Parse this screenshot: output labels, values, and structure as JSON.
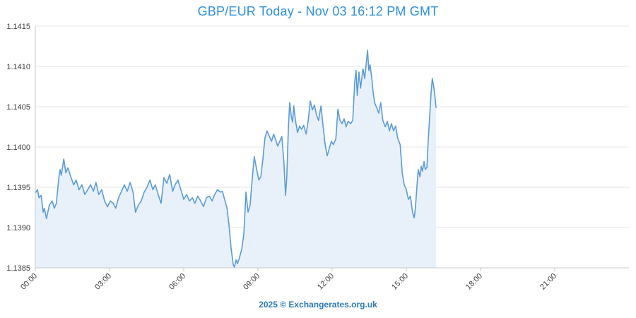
{
  "title": "GBP/EUR Today - Nov 03 16:12 PM GMT",
  "footer": "2025 © Exchangerates.org.uk",
  "colors": {
    "title": "#2e90dd",
    "footer": "#2a7ab9",
    "line": "#5b9bd8",
    "fill": "#e8f1fa",
    "grid": "#e6e6e6",
    "axis": "#c9c9c9",
    "tick": "#c9c9c9",
    "label": "#3c3c3c"
  },
  "chart_data": {
    "type": "area",
    "title": "GBP/EUR Today - Nov 03 16:12 PM GMT",
    "series_name": "GBP/EUR",
    "xlabel": "",
    "ylabel": "",
    "grid": true,
    "legend": false,
    "ylim": [
      1.1385,
      1.1415
    ],
    "y_ticks": [
      1.1415,
      1.141,
      1.1405,
      1.14,
      1.1395,
      1.139,
      1.1385
    ],
    "y_tick_decimals": 4,
    "xlim_minutes": [
      0,
      1440
    ],
    "x_tick_minutes": [
      0,
      180,
      360,
      540,
      720,
      900,
      1080,
      1260
    ],
    "x_tick_labels": [
      "00:00",
      "03:00",
      "06:00",
      "09:00",
      "12:00",
      "15:00",
      "18:00",
      "21:00"
    ],
    "last_point_minute": 972,
    "points": [
      [
        0,
        1.13943
      ],
      [
        5,
        1.13947
      ],
      [
        9,
        1.13937
      ],
      [
        14,
        1.1394
      ],
      [
        19,
        1.13919
      ],
      [
        22,
        1.13924
      ],
      [
        27,
        1.13911
      ],
      [
        34,
        1.13928
      ],
      [
        41,
        1.13933
      ],
      [
        46,
        1.13924
      ],
      [
        51,
        1.1393
      ],
      [
        57,
        1.13962
      ],
      [
        60,
        1.13972
      ],
      [
        63,
        1.13965
      ],
      [
        69,
        1.13985
      ],
      [
        74,
        1.13968
      ],
      [
        79,
        1.13974
      ],
      [
        86,
        1.13963
      ],
      [
        93,
        1.13953
      ],
      [
        99,
        1.13959
      ],
      [
        106,
        1.13947
      ],
      [
        113,
        1.13953
      ],
      [
        120,
        1.13941
      ],
      [
        127,
        1.13947
      ],
      [
        134,
        1.13953
      ],
      [
        141,
        1.13945
      ],
      [
        147,
        1.13956
      ],
      [
        154,
        1.13941
      ],
      [
        161,
        1.13947
      ],
      [
        168,
        1.13933
      ],
      [
        175,
        1.13926
      ],
      [
        182,
        1.13933
      ],
      [
        189,
        1.1393
      ],
      [
        195,
        1.13924
      ],
      [
        202,
        1.13937
      ],
      [
        209,
        1.13945
      ],
      [
        216,
        1.13953
      ],
      [
        223,
        1.13945
      ],
      [
        230,
        1.13956
      ],
      [
        237,
        1.13944
      ],
      [
        243,
        1.13919
      ],
      [
        250,
        1.13928
      ],
      [
        257,
        1.13933
      ],
      [
        264,
        1.13944
      ],
      [
        271,
        1.1395
      ],
      [
        278,
        1.13959
      ],
      [
        285,
        1.13947
      ],
      [
        291,
        1.13953
      ],
      [
        298,
        1.13941
      ],
      [
        305,
        1.1393
      ],
      [
        312,
        1.13962
      ],
      [
        319,
        1.13955
      ],
      [
        326,
        1.13966
      ],
      [
        333,
        1.13945
      ],
      [
        339,
        1.13953
      ],
      [
        346,
        1.13959
      ],
      [
        353,
        1.13947
      ],
      [
        360,
        1.13935
      ],
      [
        367,
        1.13941
      ],
      [
        374,
        1.13933
      ],
      [
        381,
        1.13937
      ],
      [
        387,
        1.1393
      ],
      [
        394,
        1.13939
      ],
      [
        401,
        1.13933
      ],
      [
        408,
        1.13926
      ],
      [
        415,
        1.13937
      ],
      [
        422,
        1.13939
      ],
      [
        429,
        1.13933
      ],
      [
        435,
        1.13941
      ],
      [
        442,
        1.13947
      ],
      [
        449,
        1.13944
      ],
      [
        454,
        1.13945
      ],
      [
        459,
        1.13935
      ],
      [
        465,
        1.13924
      ],
      [
        470,
        1.13902
      ],
      [
        475,
        1.13874
      ],
      [
        480,
        1.13854
      ],
      [
        483,
        1.13851
      ],
      [
        487,
        1.1386
      ],
      [
        490,
        1.13855
      ],
      [
        495,
        1.13862
      ],
      [
        501,
        1.13874
      ],
      [
        506,
        1.13893
      ],
      [
        511,
        1.13944
      ],
      [
        516,
        1.13919
      ],
      [
        521,
        1.13928
      ],
      [
        526,
        1.13959
      ],
      [
        531,
        1.13988
      ],
      [
        537,
        1.13972
      ],
      [
        542,
        1.13959
      ],
      [
        547,
        1.13963
      ],
      [
        552,
        1.13985
      ],
      [
        557,
        1.14011
      ],
      [
        562,
        1.1402
      ],
      [
        567,
        1.14014
      ],
      [
        573,
        1.14007
      ],
      [
        578,
        1.14016
      ],
      [
        583,
        1.14009
      ],
      [
        588,
        1.14001
      ],
      [
        593,
        1.14007
      ],
      [
        598,
        1.14013
      ],
      [
        603,
        1.13981
      ],
      [
        607,
        1.1394
      ],
      [
        610,
        1.13963
      ],
      [
        614,
        1.14025
      ],
      [
        617,
        1.14055
      ],
      [
        621,
        1.14038
      ],
      [
        624,
        1.14031
      ],
      [
        627,
        1.14051
      ],
      [
        631,
        1.14033
      ],
      [
        636,
        1.14018
      ],
      [
        641,
        1.14026
      ],
      [
        646,
        1.14022
      ],
      [
        651,
        1.14027
      ],
      [
        657,
        1.14016
      ],
      [
        662,
        1.14033
      ],
      [
        667,
        1.14057
      ],
      [
        672,
        1.14046
      ],
      [
        677,
        1.14052
      ],
      [
        682,
        1.1404
      ],
      [
        687,
        1.14033
      ],
      [
        693,
        1.14051
      ],
      [
        698,
        1.14026
      ],
      [
        703,
        1.14003
      ],
      [
        708,
        1.13989
      ],
      [
        713,
        1.13998
      ],
      [
        718,
        1.14007
      ],
      [
        723,
        1.14003
      ],
      [
        729,
        1.1401
      ],
      [
        734,
        1.14047
      ],
      [
        739,
        1.14033
      ],
      [
        744,
        1.14029
      ],
      [
        749,
        1.14035
      ],
      [
        754,
        1.14025
      ],
      [
        759,
        1.14032
      ],
      [
        765,
        1.14029
      ],
      [
        770,
        1.14033
      ],
      [
        775,
        1.14082
      ],
      [
        778,
        1.14095
      ],
      [
        781,
        1.14064
      ],
      [
        785,
        1.14093
      ],
      [
        789,
        1.14073
      ],
      [
        792,
        1.14086
      ],
      [
        795,
        1.14097
      ],
      [
        799,
        1.14085
      ],
      [
        802,
        1.141
      ],
      [
        806,
        1.1412
      ],
      [
        809,
        1.14095
      ],
      [
        812,
        1.14102
      ],
      [
        816,
        1.14086
      ],
      [
        819,
        1.1407
      ],
      [
        823,
        1.14055
      ],
      [
        828,
        1.14049
      ],
      [
        833,
        1.14042
      ],
      [
        838,
        1.14055
      ],
      [
        843,
        1.14033
      ],
      [
        849,
        1.14025
      ],
      [
        854,
        1.14032
      ],
      [
        859,
        1.1402
      ],
      [
        864,
        1.14029
      ],
      [
        869,
        1.1402
      ],
      [
        874,
        1.14026
      ],
      [
        879,
        1.14011
      ],
      [
        885,
        1.14003
      ],
      [
        890,
        1.13968
      ],
      [
        895,
        1.13953
      ],
      [
        900,
        1.13947
      ],
      [
        905,
        1.13935
      ],
      [
        910,
        1.13939
      ],
      [
        915,
        1.13919
      ],
      [
        919,
        1.13912
      ],
      [
        922,
        1.13924
      ],
      [
        926,
        1.13953
      ],
      [
        929,
        1.13972
      ],
      [
        933,
        1.13963
      ],
      [
        936,
        1.13976
      ],
      [
        939,
        1.1397
      ],
      [
        943,
        1.13982
      ],
      [
        946,
        1.13972
      ],
      [
        950,
        1.13975
      ],
      [
        953,
        1.14007
      ],
      [
        956,
        1.14033
      ],
      [
        960,
        1.14067
      ],
      [
        963,
        1.14085
      ],
      [
        967,
        1.14073
      ],
      [
        970,
        1.1406
      ],
      [
        972,
        1.14049
      ]
    ]
  }
}
